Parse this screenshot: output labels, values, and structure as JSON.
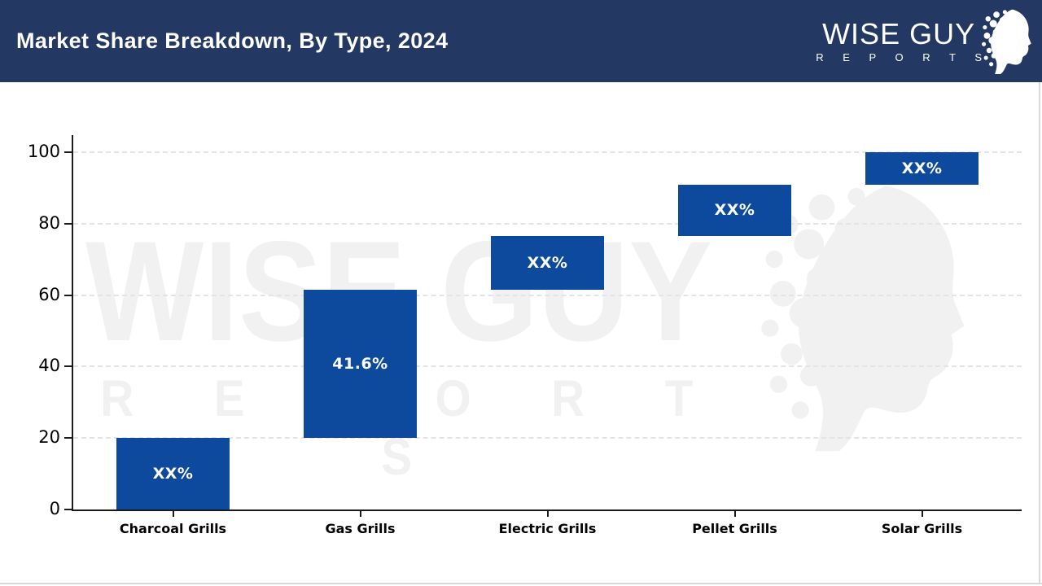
{
  "header": {
    "title": "Market Share Breakdown, By Type, 2024",
    "logo": {
      "line1": "WISE GUY",
      "line2": "R E P O R T S"
    }
  },
  "watermark": {
    "line1": "WISE GUY",
    "line2": "R E P O R T S"
  },
  "colors": {
    "header_bg": "#233862",
    "bar_blue": "#0d4a9e",
    "grid": "#e4e4e4",
    "axis": "#1a1a1a",
    "watermark": "#f1f1f2"
  },
  "chart_data": {
    "type": "bar",
    "subtype": "waterfall",
    "title": "Market Share Breakdown, By Type, 2024",
    "categories": [
      "Charcoal Grills",
      "Gas Grills",
      "Electric Grills",
      "Pellet Grills",
      "Solar Grills"
    ],
    "series": [
      {
        "name": "Market share (%)",
        "segment_start": [
          0,
          20,
          61.6,
          76.6,
          91
        ],
        "segment_end": [
          20,
          61.6,
          76.6,
          91,
          100
        ]
      }
    ],
    "bar_labels": [
      "XX%",
      "41.6%",
      "XX%",
      "XX%",
      "XX%"
    ],
    "xlabel": "",
    "ylabel": "",
    "y_ticks": [
      0,
      20,
      40,
      60,
      80,
      100
    ],
    "ylim": [
      0,
      104.8
    ],
    "grid": "horizontal-dashed",
    "legend": "none"
  }
}
